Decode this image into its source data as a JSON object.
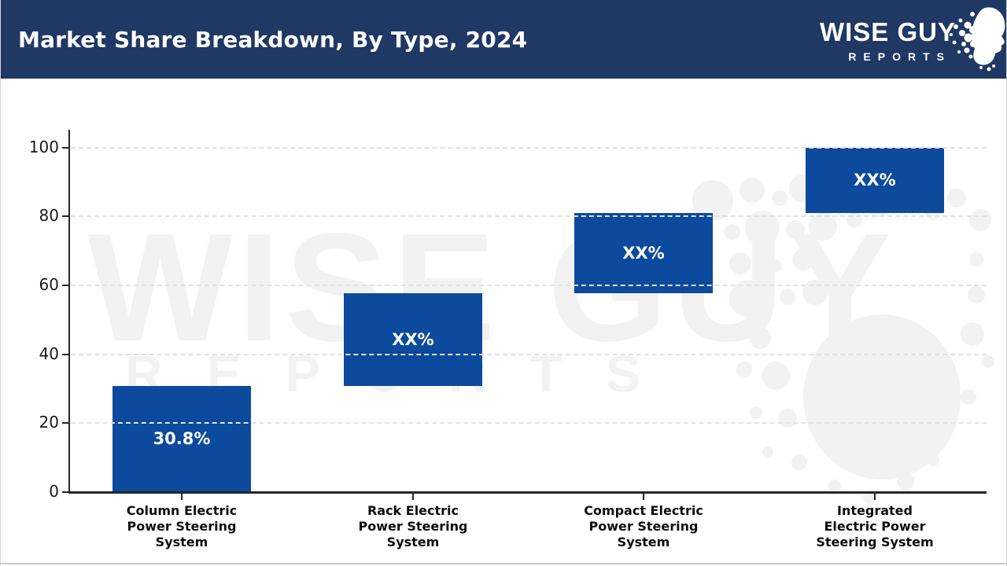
{
  "header": {
    "title": "Market Share Breakdown, By Type, 2024",
    "logo": {
      "line1": "WISE GUY",
      "line2": "REPORTS"
    }
  },
  "watermark": {
    "line1": "WISE GUY",
    "line2": "REPORTS"
  },
  "colors": {
    "header_bg": "#1f3864",
    "bar": "#0c4a9e",
    "bar_label": "#ffffff",
    "axis": "#262626",
    "grid": "#e1e1e1",
    "tick_label": "#1a1a1a",
    "watermark": "#f2f2f2"
  },
  "chart_data": {
    "type": "bar",
    "subtype": "waterfall",
    "title": "Market Share Breakdown, By Type, 2024",
    "xlabel": "",
    "ylabel": "",
    "ylim": [
      0,
      105
    ],
    "yticks": [
      0,
      20,
      40,
      60,
      80,
      100
    ],
    "grid": "horizontal dashed",
    "legend": "none",
    "bar_color": "#0c4a9e",
    "categories": [
      "Column Electric Power Steering System",
      "Rack Electric Power Steering System",
      "Compact Electric Power Steering System",
      "Integrated Electric Power Steering System"
    ],
    "category_lines": [
      [
        "Column Electric",
        "Power Steering",
        "System"
      ],
      [
        "Rack Electric",
        "Power Steering",
        "System"
      ],
      [
        "Compact Electric",
        "Power Steering",
        "System"
      ],
      [
        "Integrated",
        "Electric Power",
        "Steering System"
      ]
    ],
    "bars": [
      {
        "category": "Column Electric Power Steering System",
        "label": "30.8%",
        "start": 0,
        "end": 30.8
      },
      {
        "category": "Rack Electric Power Steering System",
        "label": "XX%",
        "start": 30.8,
        "end": 57.8
      },
      {
        "category": "Compact Electric Power Steering System",
        "label": "XX%",
        "start": 57.8,
        "end": 80.9
      },
      {
        "category": "Integrated Electric Power Steering System",
        "label": "XX%",
        "start": 80.9,
        "end": 100
      }
    ]
  }
}
